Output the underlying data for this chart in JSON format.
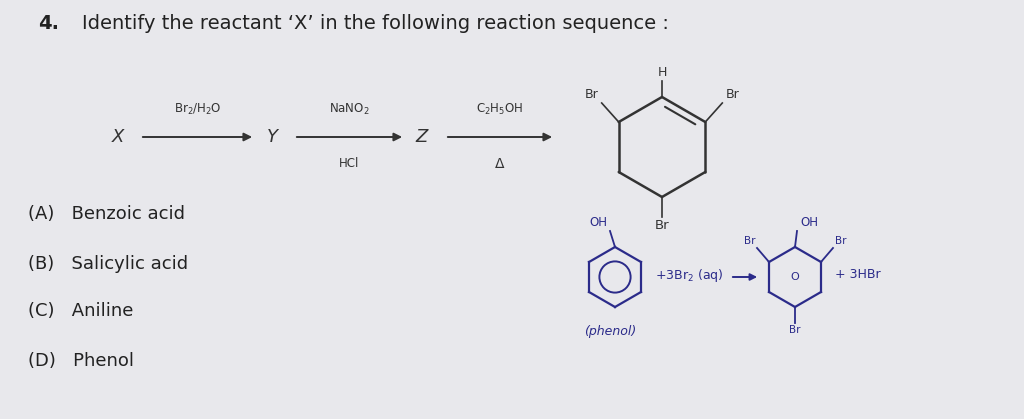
{
  "background_color": "#e8e8ec",
  "title_number": "4.",
  "title_text": "Identify the reactant ‘X’ in the following reaction sequence :",
  "title_fontsize": 14,
  "title_color": "#222222",
  "ink_color": "#2b2b8a",
  "dark_color": "#333333",
  "options": [
    "(A)   Benzoic acid",
    "(B)   Salicylic acid",
    "(C)   Aniline",
    "(D)   Phenol"
  ],
  "options_color": "#222222",
  "options_fontsize": 13
}
